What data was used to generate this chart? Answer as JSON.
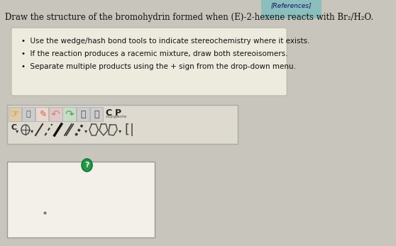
{
  "title": "Draw the structure of the bromohydrin formed when (E)-2-hexene reacts with Br₂/H₂O.",
  "references_label": "[References]",
  "bullet_points": [
    "Use the wedge/hash bond tools to indicate stereochemistry where it exists.",
    "If the reaction produces a racemic mixture, draw both stereoisomers.",
    "Separate multiple products using the + sign from the drop-down menu."
  ],
  "bg_color": "#c8c5bc",
  "box_bg": "#edeade",
  "toolbar_bg": "#dedad0",
  "canvas_bg": "#f2f0e8",
  "toolbar_border": "#aaaaaa",
  "canvas_border": "#999999",
  "title_fontsize": 8.5,
  "bullet_fontsize": 7.5,
  "ref_color": "#3366bb",
  "title_color": "#111111",
  "bullet_color": "#111111"
}
